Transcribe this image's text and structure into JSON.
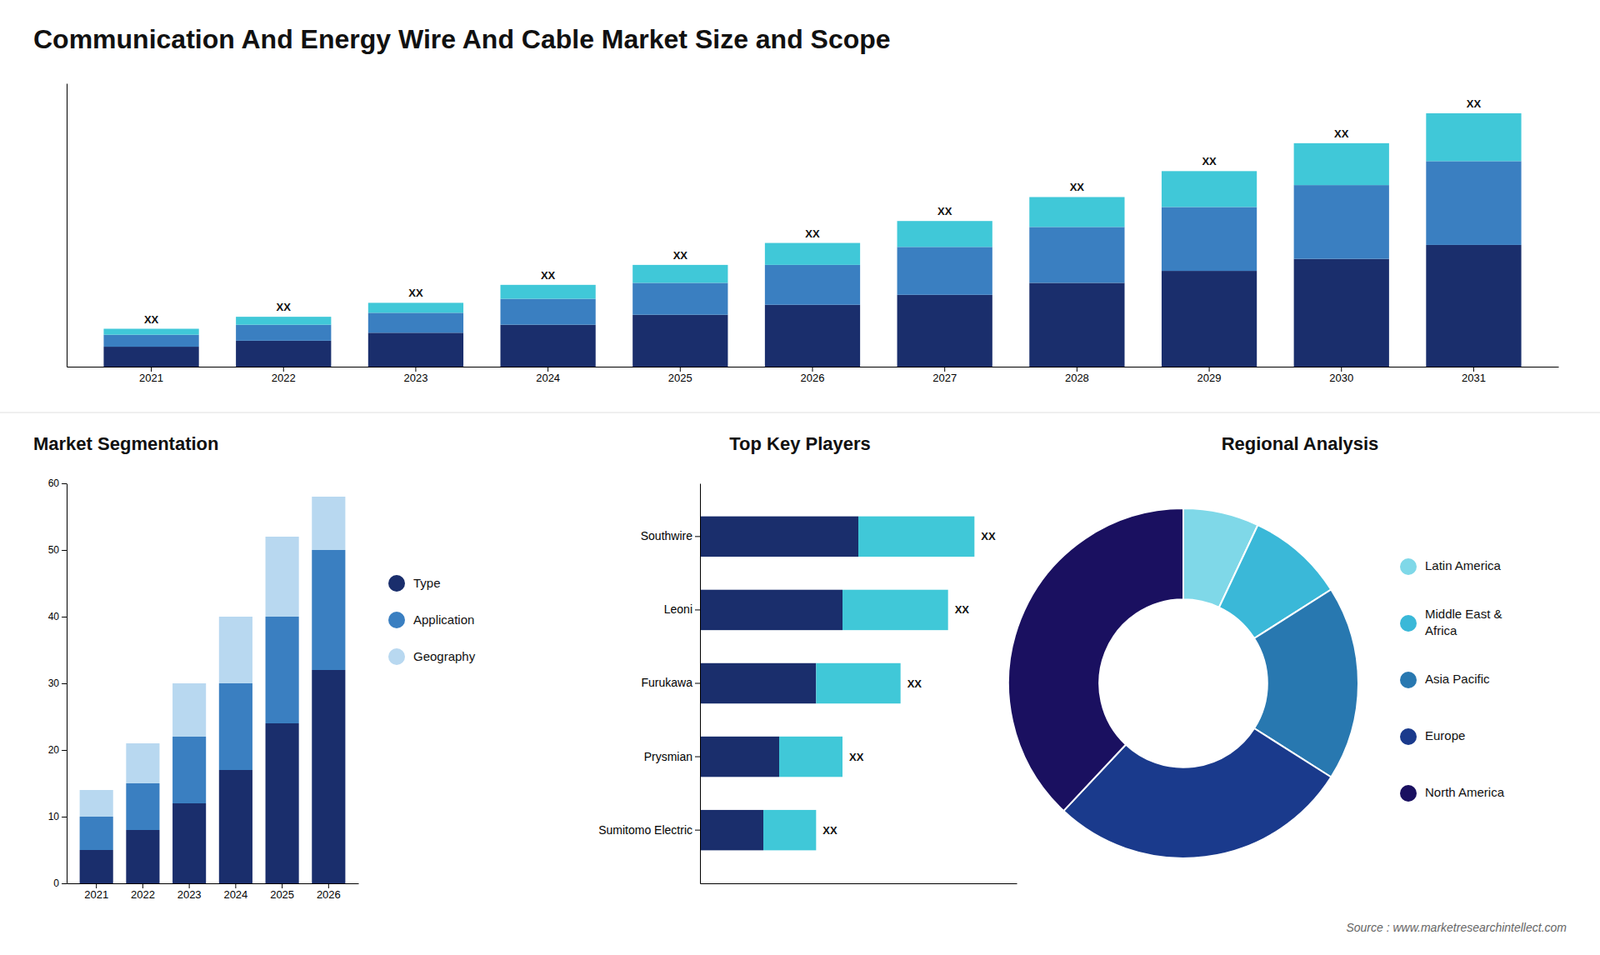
{
  "chart_data": [
    {
      "type": "bar",
      "title": "Communication And Energy Wire And Cable Market Size and Scope",
      "stacked": true,
      "categories": [
        "2021",
        "2022",
        "2023",
        "2024",
        "2025",
        "2026",
        "2027",
        "2028",
        "2029",
        "2030",
        "2031"
      ],
      "series": [
        {
          "color": "#1a2e6c",
          "values": [
            1.0,
            1.3,
            1.7,
            2.1,
            2.6,
            3.1,
            3.6,
            4.2,
            4.8,
            5.4,
            6.1
          ]
        },
        {
          "color": "#3a7fc1",
          "values": [
            0.6,
            0.8,
            1.0,
            1.3,
            1.6,
            2.0,
            2.4,
            2.8,
            3.2,
            3.7,
            4.2
          ]
        },
        {
          "color": "#40c8d8",
          "values": [
            0.3,
            0.4,
            0.5,
            0.7,
            0.9,
            1.1,
            1.3,
            1.5,
            1.8,
            2.1,
            2.4
          ]
        }
      ],
      "ylim": [
        0,
        14.2
      ],
      "annotations": [
        "XX",
        "XX",
        "XX",
        "XX",
        "XX",
        "XX",
        "XX",
        "XX",
        "XX",
        "XX",
        "XX"
      ],
      "tick_labels": "x",
      "source": "Source : www.marketresearchintellect.com"
    },
    {
      "type": "bar",
      "title": "Market Segmentation",
      "stacked": true,
      "categories": [
        "2021",
        "2022",
        "2023",
        "2024",
        "2025",
        "2026"
      ],
      "series": [
        {
          "name": "Type",
          "color": "#1a2e6c",
          "values": [
            5,
            8,
            12,
            17,
            24,
            32
          ]
        },
        {
          "name": "Application",
          "color": "#3a7fc1",
          "values": [
            5,
            7,
            10,
            13,
            16,
            18
          ]
        },
        {
          "name": "Geography",
          "color": "#b8d8f0",
          "values": [
            4,
            6,
            8,
            10,
            12,
            8
          ]
        }
      ],
      "ylim": [
        0,
        60
      ],
      "yticks": [
        0,
        10,
        20,
        30,
        40,
        50,
        60
      ],
      "legend": "right"
    },
    {
      "type": "bar",
      "title": "Top Key Players",
      "orientation": "horizontal",
      "stacked": true,
      "categories": [
        "Southwire",
        "Leoni",
        "Furukawa",
        "Prysmian",
        "Sumitomo Electric"
      ],
      "series": [
        {
          "color": "#1a2e6c",
          "values": [
            30,
            27,
            22,
            15,
            12
          ]
        },
        {
          "color": "#40c8d8",
          "values": [
            22,
            20,
            16,
            12,
            10
          ]
        }
      ],
      "xlim": [
        0,
        60
      ],
      "annotations": [
        "XX",
        "XX",
        "XX",
        "XX",
        "XX"
      ],
      "tick_labels": "y"
    },
    {
      "type": "donut",
      "title": "Regional Analysis",
      "categories": [
        "Latin America",
        "Middle East &\nAfrica",
        "Asia Pacific",
        "Europe",
        "North America"
      ],
      "values": [
        7,
        9,
        18,
        28,
        38
      ],
      "colors": [
        "#7fd8e8",
        "#3ab8d8",
        "#2878b0",
        "#1a3a8c",
        "#1a1060"
      ],
      "legend": "right"
    }
  ]
}
